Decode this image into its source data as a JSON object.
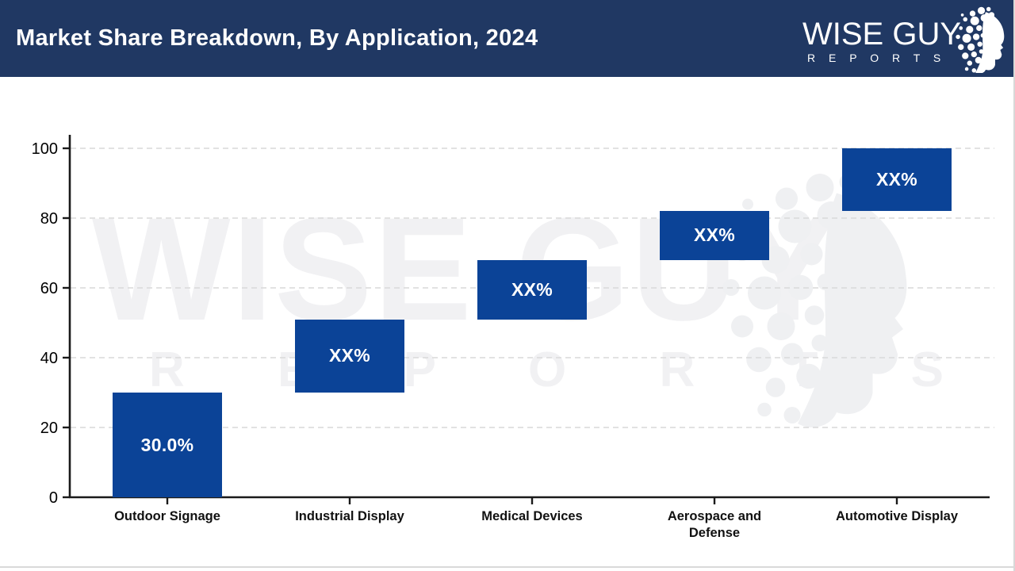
{
  "header": {
    "title": "Market Share Breakdown, By Application, 2024",
    "bg_color": "#203863",
    "logo": {
      "line1": "WISE GUY",
      "line2": "R E P O R T S"
    }
  },
  "watermark": {
    "line1": "WISE GUY",
    "line2": "R E P O R T S"
  },
  "chart_data": {
    "type": "bar",
    "subtype": "waterfall",
    "title": "Market Share Breakdown, By Application, 2024",
    "xlabel": "",
    "ylabel": "",
    "categories": [
      "Outdoor Signage",
      "Industrial Display",
      "Medical Devices",
      "Aerospace and Defense",
      "Automotive Display"
    ],
    "segments": [
      {
        "category": "Outdoor Signage",
        "start": 0,
        "end": 30,
        "label": "30.0%"
      },
      {
        "category": "Industrial Display",
        "start": 30,
        "end": 51,
        "label": "XX%"
      },
      {
        "category": "Medical Devices",
        "start": 51,
        "end": 68,
        "label": "XX%"
      },
      {
        "category": "Aerospace and Defense",
        "start": 68,
        "end": 82,
        "label": "XX%"
      },
      {
        "category": "Automotive Display",
        "start": 82,
        "end": 100,
        "label": "XX%"
      }
    ],
    "yticks": [
      0,
      20,
      40,
      60,
      80,
      100
    ],
    "ylim": [
      0,
      104
    ],
    "grid": true,
    "grid_color": "#d9d9d9",
    "axis_color": "#1a1a1a",
    "bar_color": "#0b4397",
    "bar_label_color": "#ffffff",
    "legend": "none"
  }
}
